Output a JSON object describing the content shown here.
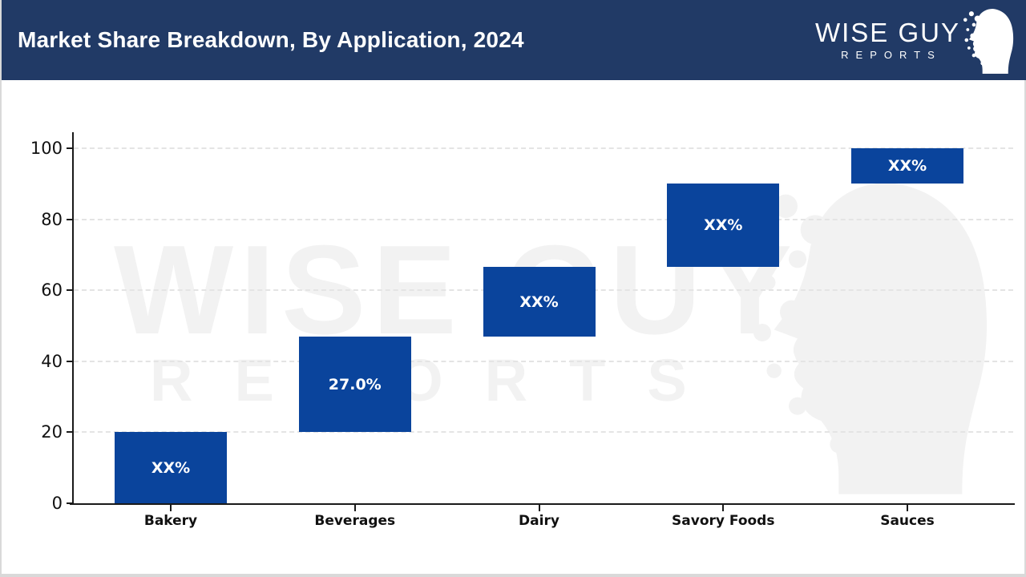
{
  "header": {
    "title": "Market Share Breakdown, By Application, 2024",
    "logo": {
      "line1": "WISE GUY",
      "line2": "REPORTS"
    }
  },
  "watermark": {
    "line1": "WISE GUY",
    "line2": "REPORTS"
  },
  "colors": {
    "header_bg": "#213a66",
    "bar": "#0a449c",
    "grid": "#e4e4e4",
    "axis": "#1a1a1a",
    "bar_label_text": "#ffffff",
    "watermark": "#f2f2f2"
  },
  "chart_data": {
    "type": "bar",
    "subtype": "floating-waterfall",
    "title": "Market Share Breakdown, By Application, 2024",
    "xlabel": "",
    "ylabel": "",
    "ylim": [
      0,
      100
    ],
    "yticks": [
      0,
      20,
      40,
      60,
      80,
      100
    ],
    "grid": "horizontal-dashed",
    "legend": "none",
    "bar_color": "#0a449c",
    "categories": [
      "Bakery",
      "Beverages",
      "Dairy",
      "Savory Foods",
      "Sauces"
    ],
    "bars": [
      {
        "category": "Bakery",
        "base": 0,
        "top": 20,
        "value_label": "XX%"
      },
      {
        "category": "Beverages",
        "base": 20,
        "top": 47,
        "value_label": "27.0%"
      },
      {
        "category": "Dairy",
        "base": 47,
        "top": 66.5,
        "value_label": "XX%"
      },
      {
        "category": "Savory Foods",
        "base": 66.5,
        "top": 90,
        "value_label": "XX%"
      },
      {
        "category": "Sauces",
        "base": 90,
        "top": 100,
        "value_label": "XX%"
      }
    ]
  }
}
